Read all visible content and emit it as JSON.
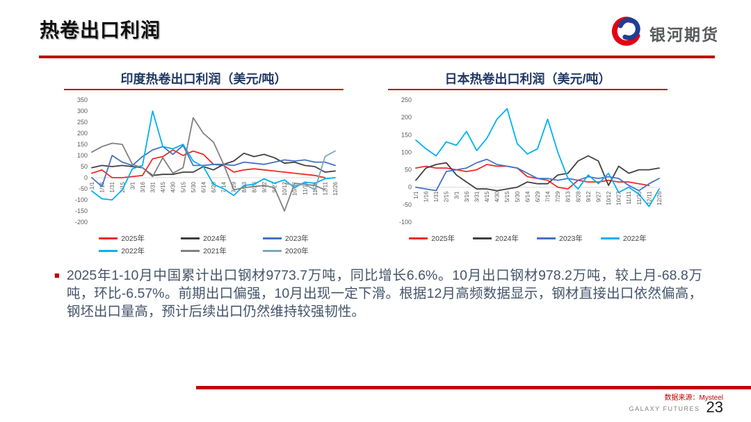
{
  "header": {
    "title": "热卷出口利润"
  },
  "logo": {
    "text": "银河期货"
  },
  "chart_data": [
    {
      "type": "line",
      "title": "印度热卷出口利润（美元/吨）",
      "xlabel": "",
      "ylabel": "美元/吨",
      "ylim": [
        -200,
        350
      ],
      "yticks": [
        350,
        300,
        250,
        200,
        150,
        100,
        50,
        0,
        -50,
        -100,
        -150,
        -200
      ],
      "grid": "zero-line-only",
      "legend_position": "bottom",
      "legend_rows": 2,
      "categories": [
        "1/1",
        "1/16",
        "1/31",
        "2/15",
        "3/1",
        "3/16",
        "3/31",
        "4/15",
        "4/30",
        "5/15",
        "5/30",
        "6/14",
        "6/29",
        "7/14",
        "7/29",
        "8/13",
        "8/28",
        "9/12",
        "9/27",
        "10/12",
        "10/27",
        "11/11",
        "11/26",
        "12/11",
        "12/26"
      ],
      "series": [
        {
          "name": "2025年",
          "color": "#ee2b24",
          "values": [
            20,
            35,
            0,
            0,
            5,
            10,
            85,
            95,
            125,
            100,
            120,
            105,
            60,
            55,
            25,
            35,
            40,
            35,
            30,
            25,
            20,
            15,
            10,
            0,
            null
          ]
        },
        {
          "name": "2024年",
          "color": "#404040",
          "values": [
            45,
            55,
            50,
            55,
            50,
            45,
            10,
            15,
            15,
            25,
            25,
            50,
            35,
            60,
            75,
            110,
            95,
            105,
            90,
            65,
            70,
            55,
            50,
            25,
            30
          ]
        },
        {
          "name": "2023年",
          "color": "#4472c4",
          "values": [
            0,
            -40,
            100,
            70,
            55,
            95,
            125,
            140,
            105,
            145,
            55,
            55,
            60,
            60,
            55,
            70,
            65,
            60,
            70,
            80,
            75,
            80,
            70,
            70,
            55
          ]
        },
        {
          "name": "2022年",
          "color": "#00b0f0",
          "values": [
            -60,
            -95,
            -100,
            -55,
            40,
            55,
            300,
            140,
            130,
            150,
            75,
            50,
            -30,
            -50,
            -80,
            -35,
            -30,
            -5,
            -25,
            -10,
            -45,
            -20,
            -25,
            -5,
            0
          ]
        },
        {
          "name": "2021年",
          "color": "#808080",
          "values": [
            115,
            140,
            155,
            150,
            60,
            45,
            5,
            90,
            20,
            45,
            270,
            200,
            160,
            60,
            -55,
            -45,
            -40,
            -35,
            -45,
            -150,
            -25,
            -30,
            -35,
            -55,
            null
          ]
        },
        {
          "name": "2020年",
          "color": "#7da7c4",
          "values": [
            null,
            null,
            null,
            null,
            null,
            null,
            null,
            null,
            null,
            null,
            null,
            null,
            null,
            null,
            null,
            null,
            null,
            null,
            null,
            -25,
            -35,
            -30,
            -55,
            95,
            120
          ]
        }
      ]
    },
    {
      "type": "line",
      "title": "日本热卷出口利润（美元/吨）",
      "xlabel": "",
      "ylabel": "美元/吨",
      "ylim": [
        -100,
        250
      ],
      "yticks": [
        250,
        200,
        150,
        100,
        50,
        0,
        -50,
        -100
      ],
      "grid": "zero-line-only",
      "legend_position": "bottom",
      "legend_rows": 1,
      "categories": [
        "1/1",
        "1/16",
        "1/31",
        "2/15",
        "3/1",
        "3/16",
        "3/31",
        "4/15",
        "4/30",
        "5/15",
        "5/30",
        "6/14",
        "6/29",
        "7/14",
        "7/29",
        "8/13",
        "8/28",
        "9/12",
        "9/27",
        "10/12",
        "10/27",
        "11/11",
        "11/26",
        "12/11",
        "12/26"
      ],
      "series": [
        {
          "name": "2025年",
          "color": "#ee2b24",
          "values": [
            55,
            60,
            55,
            55,
            50,
            45,
            50,
            65,
            60,
            60,
            55,
            30,
            25,
            20,
            0,
            -5,
            20,
            15,
            15,
            20,
            15,
            15,
            10,
            5,
            null
          ]
        },
        {
          "name": "2024年",
          "color": "#404040",
          "values": [
            20,
            55,
            65,
            70,
            35,
            15,
            -5,
            -5,
            -10,
            -5,
            0,
            15,
            10,
            10,
            35,
            40,
            75,
            90,
            75,
            5,
            60,
            40,
            50,
            50,
            55
          ]
        },
        {
          "name": "2023年",
          "color": "#4472c4",
          "values": [
            0,
            -5,
            -10,
            45,
            50,
            55,
            70,
            80,
            65,
            60,
            55,
            40,
            25,
            25,
            20,
            25,
            20,
            30,
            25,
            30,
            25,
            5,
            -10,
            10,
            25
          ]
        },
        {
          "name": "2022年",
          "color": "#00b0f0",
          "values": [
            135,
            110,
            90,
            130,
            120,
            160,
            105,
            140,
            195,
            225,
            125,
            95,
            110,
            195,
            100,
            25,
            -5,
            35,
            10,
            40,
            -15,
            0,
            -20,
            -55,
            -5
          ]
        }
      ]
    }
  ],
  "bullet": {
    "marker": "■",
    "text": "2025年1-10月中国累计出口钢材9773.7万吨，同比增长6.6%。10月出口钢材978.2万吨，较上月-68.8万吨，环比-6.57%。前期出口偏强，10月出现一定下滑。根据12月高频数据显示，钢材直接出口依然偏高，钢坯出口量高，预计后续出口仍然维持较强韧性。"
  },
  "footer": {
    "source": "数据来源：Mysteel",
    "brand": "GALAXY FUTURES",
    "page": "23"
  }
}
